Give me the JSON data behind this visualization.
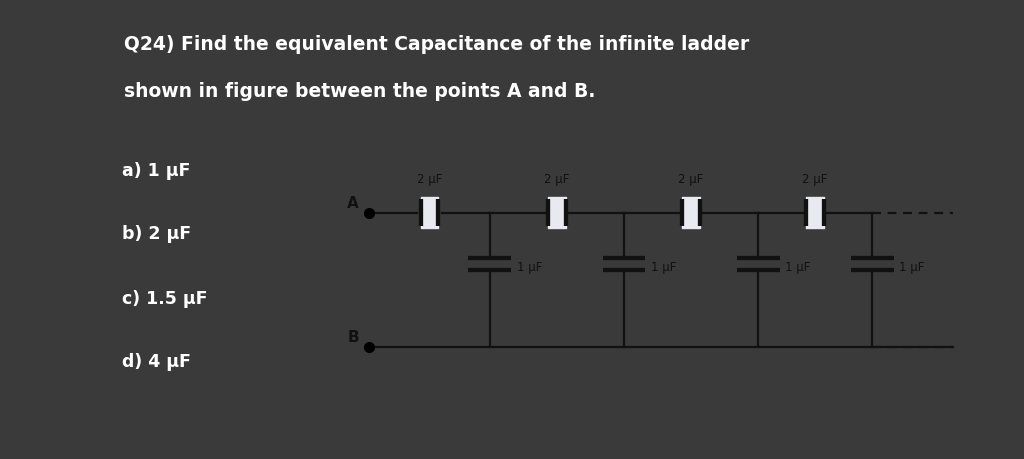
{
  "title_line1": "Q24) Find the equivalent Capacitance of the infinite ladder",
  "title_line2": "shown in figure between the points A and B.",
  "title_bg_color": "#5a5ab8",
  "title_text_color": "#ffffff",
  "bg_color": "#3a3a3a",
  "panel_bg_color": "#e8eaf0",
  "options": [
    "a) 1 μF",
    "b) 2 μF",
    "c) 1.5 μF",
    "d) 4 μF"
  ],
  "options_text_color": "#ffffff",
  "circuit_line_color": "#111111",
  "series_cap_label": "2 μF",
  "shunt_cap_label": "1 μF",
  "point_A_label": "A",
  "point_B_label": "B"
}
